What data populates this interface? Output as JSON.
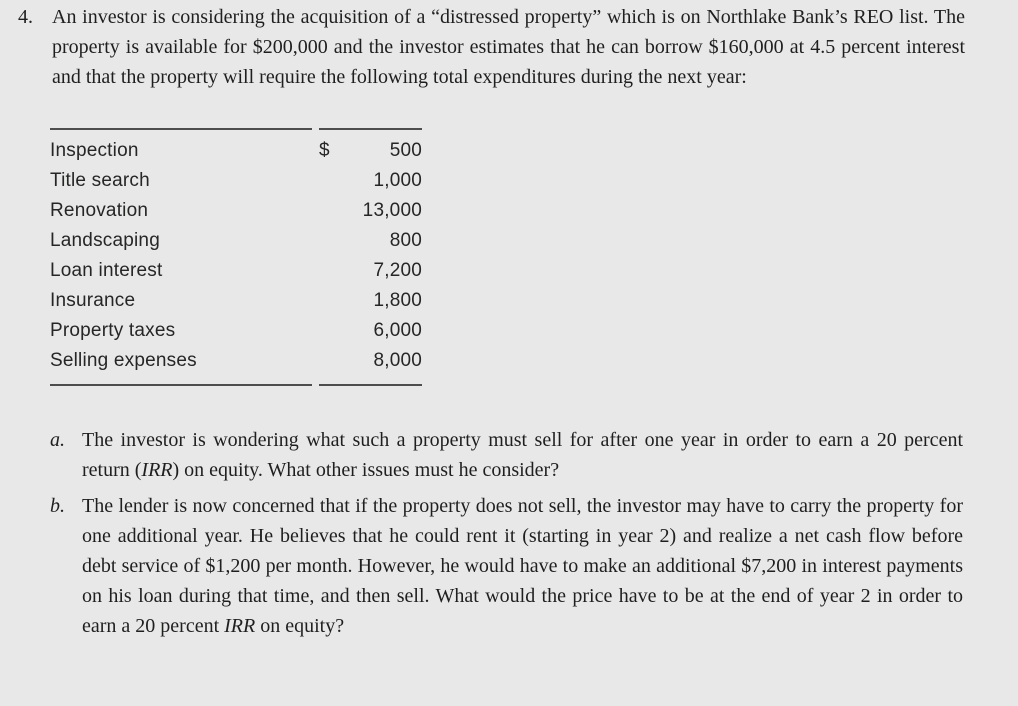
{
  "page": {
    "background_color": "#e7e8e7",
    "text_color": "#1f1f1f",
    "rule_color": "#4d4d4d"
  },
  "problem": {
    "number": "4.",
    "intro": "An investor is considering the acquisition of a “distressed property” which is on Northlake Bank’s REO list. The property is available for $200,000 and the investor estimates that he can borrow $160,000 at 4.5 percent interest and that the property will require the following total expenditures during the next year:"
  },
  "expenditures": {
    "rows": [
      {
        "label": "Inspection",
        "currency": "$",
        "amount": "500"
      },
      {
        "label": "Title search",
        "currency": "",
        "amount": "1,000"
      },
      {
        "label": "Renovation",
        "currency": "",
        "amount": "13,000"
      },
      {
        "label": "Landscaping",
        "currency": "",
        "amount": "800"
      },
      {
        "label": "Loan interest",
        "currency": "",
        "amount": "7,200"
      },
      {
        "label": "Insurance",
        "currency": "",
        "amount": "1,800"
      },
      {
        "label": "Property taxes",
        "currency": "",
        "amount": "6,000"
      },
      {
        "label": "Selling expenses",
        "currency": "",
        "amount": "8,000"
      }
    ]
  },
  "parts": [
    {
      "marker": "a.",
      "text_before": "The investor is wondering what such a property must sell for after one year in order to earn a 20 percent return (",
      "italic_term": "IRR",
      "text_after": ") on equity. What other issues must he consider?"
    },
    {
      "marker": "b.",
      "text_before": "The lender is now concerned that if the property does not sell, the investor may have to carry the property for one additional year. He believes that he could rent it (starting in year 2) and realize a net cash flow before debt service of $1,200 per month. However, he would have to make an additional $7,200 in interest payments on his loan during that time, and then sell. What would the price have to be at the end of year 2 in order to earn a 20 percent ",
      "italic_term": "IRR",
      "text_after": " on equity?"
    }
  ]
}
